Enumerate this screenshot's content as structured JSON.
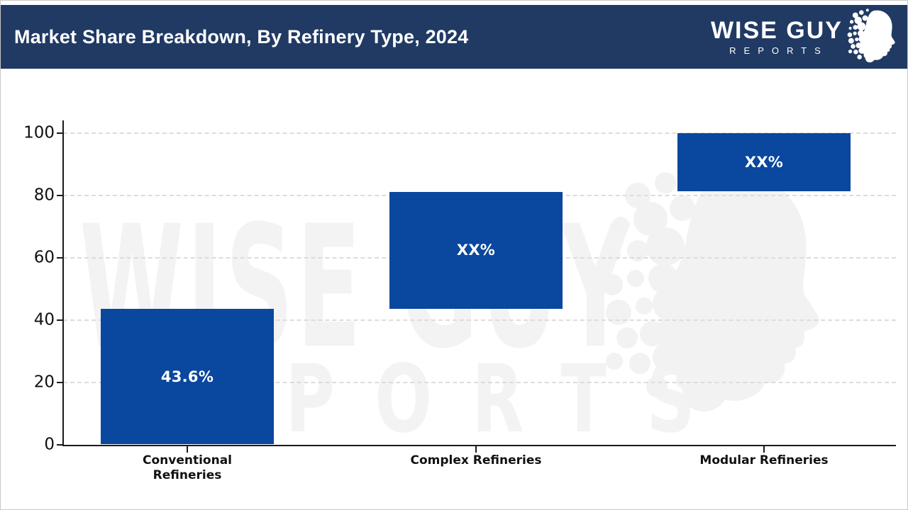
{
  "header": {
    "title": "Market Share Breakdown, By Refinery Type, 2024",
    "logo": {
      "line1": "WISE GUY",
      "line2": "REPORTS"
    }
  },
  "watermark": {
    "line1": "WISE GUY",
    "line2": "REPORTS"
  },
  "colors": {
    "header_bg": "#203a64",
    "bar_fill": "#0a479e",
    "grid": "#dcdcdc",
    "axis": "#1a1a1a",
    "watermark": "#f3f3f3",
    "bar_label": "#ffffff",
    "title_text": "#ffffff"
  },
  "chart_data": {
    "type": "bar",
    "subtype": "waterfall",
    "title": "Market Share Breakdown, By Refinery Type, 2024",
    "categories": [
      "Conventional Refineries",
      "Complex Refineries",
      "Modular Refineries"
    ],
    "category_tick_labels": [
      "Conventional\nRefineries",
      "Complex Refineries",
      "Modular Refineries"
    ],
    "bars": [
      {
        "category": "Conventional Refineries",
        "start": 0,
        "end": 43.6,
        "label": "43.6%"
      },
      {
        "category": "Complex Refineries",
        "start": 43.6,
        "end": 81.1,
        "label": "XX%"
      },
      {
        "category": "Modular Refineries",
        "start": 81.2,
        "end": 100,
        "label": "XX%"
      }
    ],
    "xlabel": "",
    "ylabel": "",
    "ylim": [
      0,
      100
    ],
    "yticks": [
      0,
      20,
      40,
      60,
      80,
      100
    ],
    "grid": "dashed horizontal",
    "legend": "none"
  }
}
